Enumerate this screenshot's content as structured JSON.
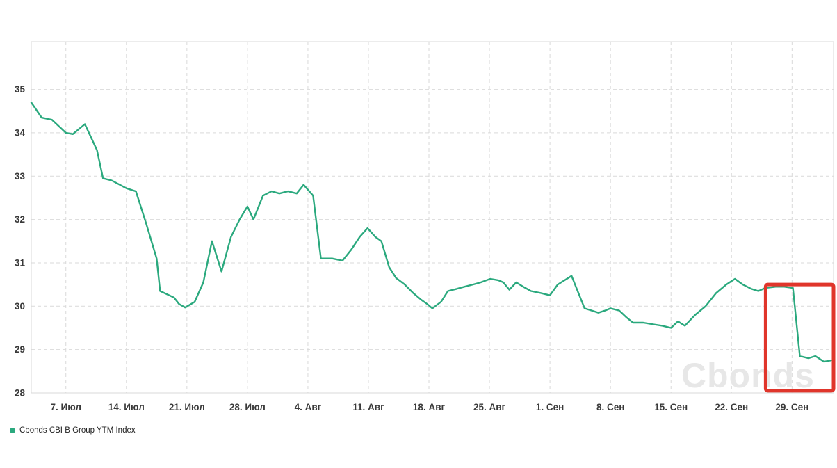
{
  "legend": {
    "label": "Cbonds CBI B Group YTM Index",
    "marker_color": "#2BA97E"
  },
  "watermark": {
    "text": "Cbonds",
    "color": "#e7e7e7"
  },
  "annotation": {
    "type": "highlight-box",
    "color": "#E0352B",
    "x_day_range": [
      84.95,
      92.8
    ],
    "y_value_range": [
      28.05,
      30.5
    ]
  },
  "chart_data": {
    "type": "line",
    "title": "",
    "xlabel": "",
    "ylabel": "",
    "grid": "dashed",
    "xlim": [
      0,
      92.8
    ],
    "ylim": [
      28,
      36.1
    ],
    "y_ticks": [
      28,
      29,
      30,
      31,
      32,
      33,
      34,
      35
    ],
    "x_ticks": [
      {
        "day": 4,
        "label": "7. Июл"
      },
      {
        "day": 11,
        "label": "14. Июл"
      },
      {
        "day": 18,
        "label": "21. Июл"
      },
      {
        "day": 25,
        "label": "28. Июл"
      },
      {
        "day": 32,
        "label": "4. Авг"
      },
      {
        "day": 39,
        "label": "11. Авг"
      },
      {
        "day": 46,
        "label": "18. Авг"
      },
      {
        "day": 53,
        "label": "25. Авг"
      },
      {
        "day": 60,
        "label": "1. Сен"
      },
      {
        "day": 67,
        "label": "8. Сен"
      },
      {
        "day": 74,
        "label": "15. Сен"
      },
      {
        "day": 81,
        "label": "22. Сен"
      },
      {
        "day": 88,
        "label": "29. Сен"
      }
    ],
    "series": [
      {
        "name": "Cbonds CBI B Group YTM Index",
        "color": "#2BA97E",
        "points": [
          [
            0,
            34.7
          ],
          [
            1.2,
            34.35
          ],
          [
            2.4,
            34.3
          ],
          [
            4,
            34.0
          ],
          [
            4.8,
            33.97
          ],
          [
            6.2,
            34.2
          ],
          [
            7.6,
            33.6
          ],
          [
            8.3,
            32.95
          ],
          [
            9.3,
            32.9
          ],
          [
            11,
            32.72
          ],
          [
            12.1,
            32.65
          ],
          [
            13.3,
            31.9
          ],
          [
            14.5,
            31.1
          ],
          [
            14.9,
            30.35
          ],
          [
            16.5,
            30.2
          ],
          [
            17.1,
            30.05
          ],
          [
            17.8,
            29.97
          ],
          [
            18.9,
            30.1
          ],
          [
            19.9,
            30.55
          ],
          [
            20.9,
            31.5
          ],
          [
            22,
            30.8
          ],
          [
            23.1,
            31.6
          ],
          [
            24.1,
            32.0
          ],
          [
            25,
            32.3
          ],
          [
            25.7,
            32.0
          ],
          [
            26.8,
            32.55
          ],
          [
            27.8,
            32.65
          ],
          [
            28.7,
            32.6
          ],
          [
            29.7,
            32.65
          ],
          [
            30.7,
            32.6
          ],
          [
            31.5,
            32.8
          ],
          [
            32.6,
            32.55
          ],
          [
            33.5,
            31.1
          ],
          [
            34.8,
            31.1
          ],
          [
            36,
            31.05
          ],
          [
            37,
            31.3
          ],
          [
            38,
            31.6
          ],
          [
            38.9,
            31.8
          ],
          [
            39.8,
            31.6
          ],
          [
            40.5,
            31.5
          ],
          [
            41.4,
            30.9
          ],
          [
            42.2,
            30.65
          ],
          [
            43.2,
            30.5
          ],
          [
            44.2,
            30.3
          ],
          [
            45.1,
            30.15
          ],
          [
            45.8,
            30.05
          ],
          [
            46.4,
            29.95
          ],
          [
            47.4,
            30.1
          ],
          [
            48.2,
            30.35
          ],
          [
            49.2,
            30.4
          ],
          [
            50.1,
            30.45
          ],
          [
            51.1,
            30.5
          ],
          [
            52,
            30.55
          ],
          [
            53.1,
            30.63
          ],
          [
            54,
            30.6
          ],
          [
            54.6,
            30.55
          ],
          [
            55.3,
            30.38
          ],
          [
            56.1,
            30.55
          ],
          [
            56.9,
            30.45
          ],
          [
            57.8,
            30.35
          ],
          [
            59,
            30.3
          ],
          [
            60,
            30.25
          ],
          [
            60.9,
            30.5
          ],
          [
            61.7,
            30.6
          ],
          [
            62.5,
            30.7
          ],
          [
            63.1,
            30.4
          ],
          [
            64,
            29.95
          ],
          [
            64.8,
            29.9
          ],
          [
            65.6,
            29.85
          ],
          [
            66.4,
            29.9
          ],
          [
            67,
            29.95
          ],
          [
            68,
            29.9
          ],
          [
            68.8,
            29.75
          ],
          [
            69.6,
            29.62
          ],
          [
            70.8,
            29.62
          ],
          [
            72,
            29.58
          ],
          [
            73,
            29.55
          ],
          [
            74,
            29.5
          ],
          [
            74.8,
            29.65
          ],
          [
            75.6,
            29.55
          ],
          [
            76.8,
            29.8
          ],
          [
            78,
            30.0
          ],
          [
            79.2,
            30.3
          ],
          [
            80.4,
            30.5
          ],
          [
            81.4,
            30.63
          ],
          [
            82.3,
            30.5
          ],
          [
            83.3,
            30.4
          ],
          [
            84.1,
            30.35
          ],
          [
            84.9,
            30.42
          ],
          [
            86.1,
            30.45
          ],
          [
            87.1,
            30.45
          ],
          [
            88.1,
            30.42
          ],
          [
            88.9,
            28.85
          ],
          [
            89.9,
            28.8
          ],
          [
            90.7,
            28.85
          ],
          [
            91.7,
            28.72
          ],
          [
            92.5,
            28.75
          ]
        ]
      }
    ]
  }
}
